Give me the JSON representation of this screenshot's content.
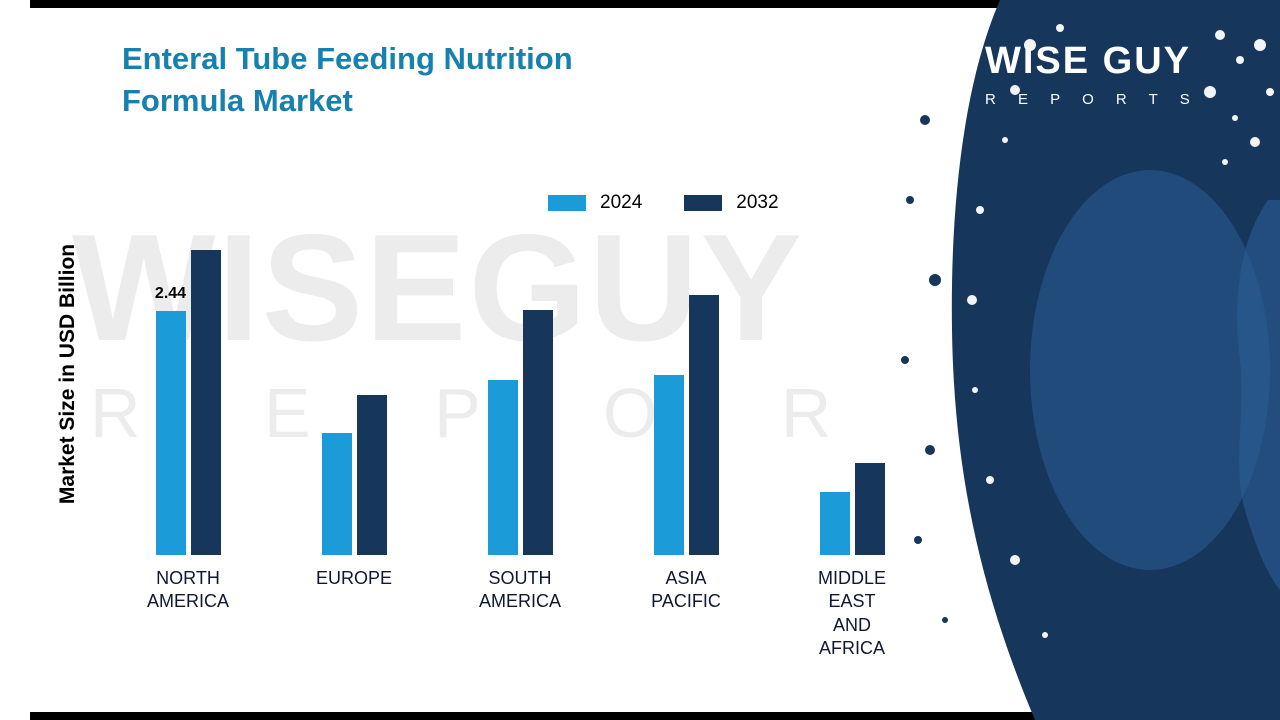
{
  "header": {
    "title": "Enteral Tube Feeding Nutrition\nFormula Market"
  },
  "logo": {
    "line1": "WISE GUY",
    "line2": "R E P O R T S"
  },
  "watermark": {
    "line1": "WISEGUY",
    "line2": "R E P O R T S"
  },
  "colors": {
    "title_accent": "#1680ae",
    "bar_2024": "#1b9cd8",
    "bar_2032": "#16365c",
    "head_navy": "#16365c"
  },
  "chart_data": {
    "type": "bar",
    "title": "Enteral Tube Feeding Nutrition Formula Market",
    "xlabel": "",
    "ylabel": "Market Size in USD Billion",
    "ylim": [
      0,
      3.1
    ],
    "grid": false,
    "legend_position": "top",
    "categories": [
      "NORTH\nAMERICA",
      "EUROPE",
      "SOUTH\nAMERICA",
      "ASIA\nPACIFIC",
      "MIDDLE\nEAST\nAND\nAFRICA"
    ],
    "series": [
      {
        "name": "2024",
        "color": "#1b9cd8",
        "values": [
          2.44,
          1.22,
          1.75,
          1.8,
          0.63
        ]
      },
      {
        "name": "2032",
        "color": "#16365c",
        "values": [
          3.05,
          1.6,
          2.45,
          2.6,
          0.92
        ]
      }
    ],
    "annotations": [
      {
        "series_index": 0,
        "category_index": 0,
        "text": "2.44"
      }
    ]
  }
}
